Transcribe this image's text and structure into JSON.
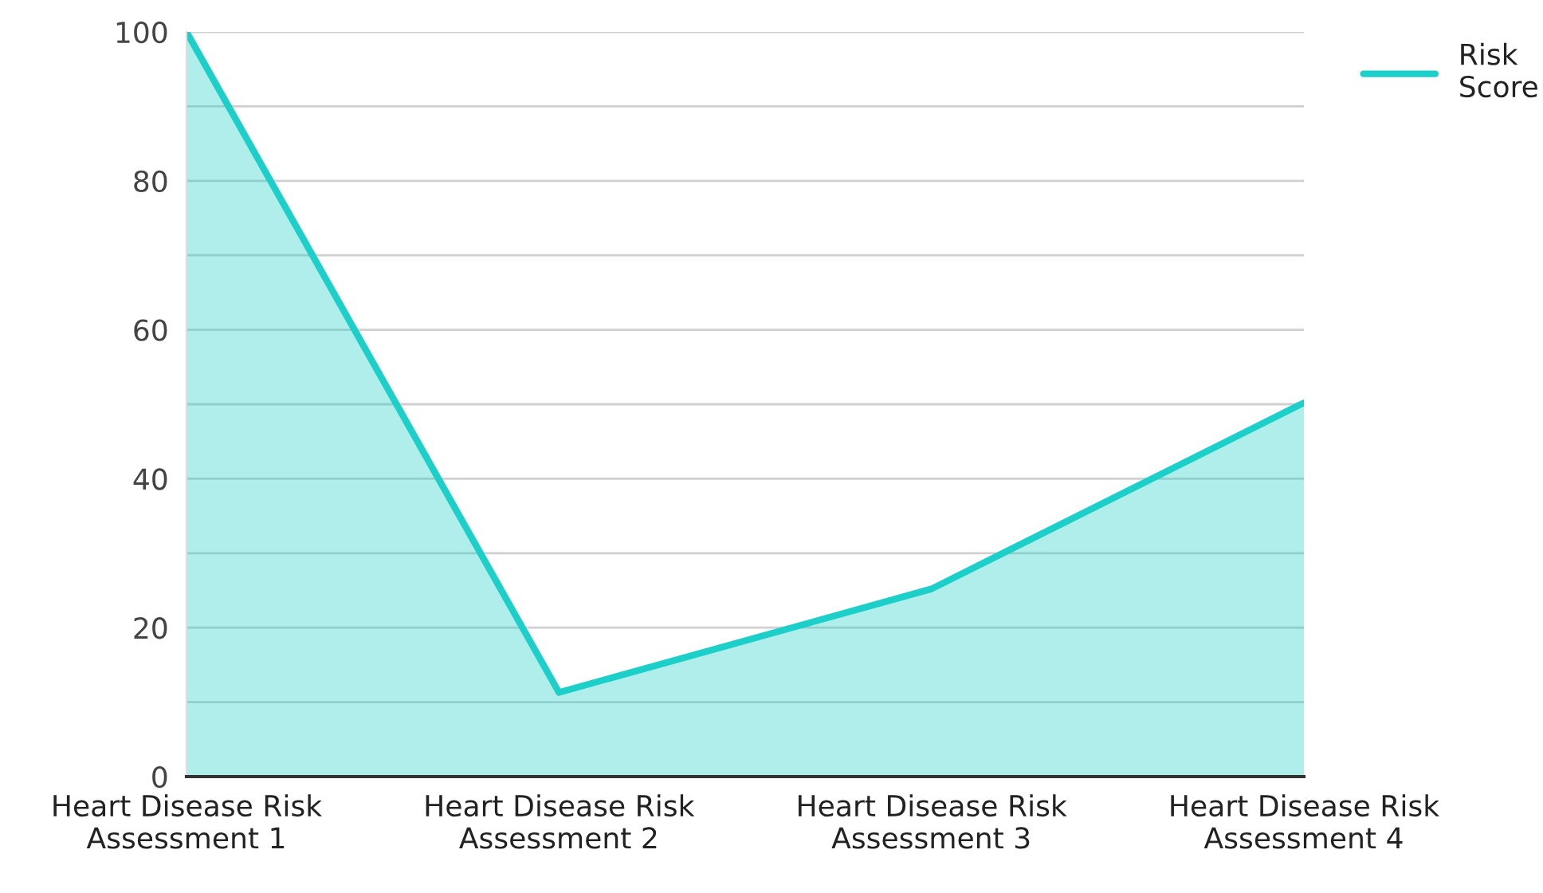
{
  "chart_data": {
    "type": "area",
    "categories": [
      "Heart Disease Risk Assessment 1",
      "Heart Disease Risk Assessment 2",
      "Heart Disease Risk Assessment 3",
      "Heart Disease Risk Assessment 4"
    ],
    "series": [
      {
        "name": "Risk Score",
        "color": "#1ccfc9",
        "values": [
          100,
          11.3,
          25.2,
          50.2
        ]
      }
    ],
    "ylim": [
      0,
      100
    ],
    "yticks": [
      0,
      {
        "value": 10,
        "label": null
      },
      20,
      {
        "value": 30,
        "label": null
      },
      40,
      {
        "value": 50,
        "label": null
      },
      60,
      {
        "value": 70,
        "label": null
      },
      80,
      {
        "value": 90,
        "label": null
      },
      100
    ],
    "grid": "y",
    "legend": "top right"
  }
}
